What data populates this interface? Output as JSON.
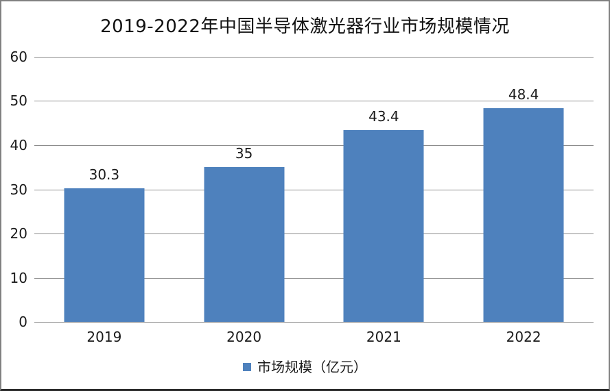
{
  "chart_data": {
    "type": "bar",
    "title": "2019-2022年中国半导体激光器行业市场规模情况",
    "categories": [
      "2019",
      "2020",
      "2021",
      "2022"
    ],
    "series": [
      {
        "name": "市场规模（亿元）",
        "values": [
          30.3,
          35,
          43.4,
          48.4
        ]
      }
    ],
    "value_labels": [
      "30.3",
      "35",
      "43.4",
      "48.4"
    ],
    "xlabel": "",
    "ylabel": "",
    "ylim": [
      0,
      60
    ],
    "yticks": [
      0,
      10,
      20,
      30,
      40,
      50,
      60
    ],
    "grid": true,
    "legend_position": "bottom",
    "colors": {
      "bar": "#4E81BD",
      "gridline": "#8C8C8C",
      "axis_line": "#7F7F7F",
      "text": "#1A1A1A",
      "background": "#FFFFFF"
    }
  },
  "legend": {
    "swatch_icon": "blue-square-icon",
    "label": "市场规模（亿元）"
  }
}
